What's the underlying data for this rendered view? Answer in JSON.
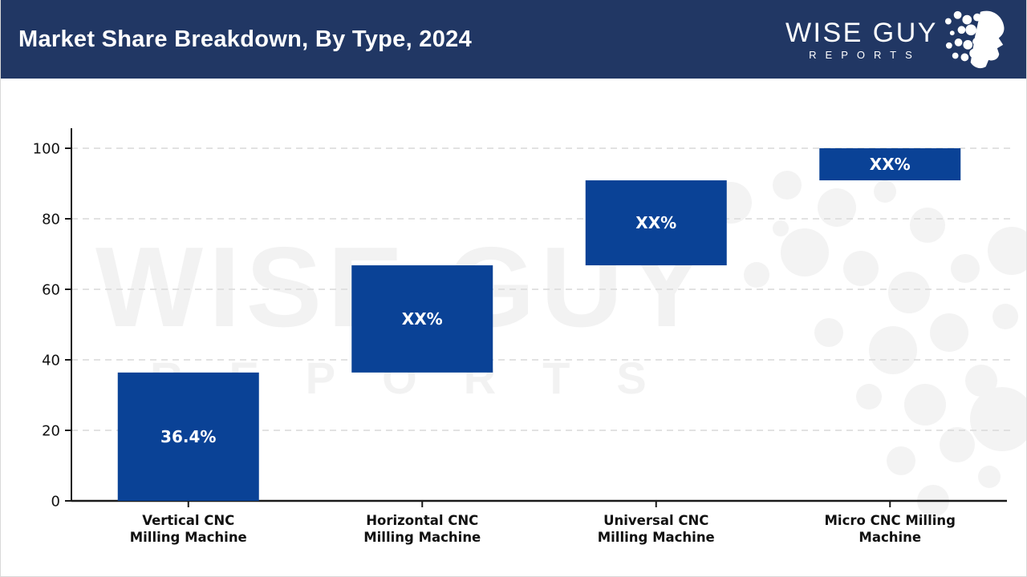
{
  "header": {
    "title": "Market Share Breakdown, By Type, 2024",
    "logo": {
      "name": "WISE GUY",
      "tagline": "REPORTS"
    }
  },
  "watermark": {
    "line1": "WISE GUY",
    "line2": "REPORTS"
  },
  "colors": {
    "header_bg": "#213764",
    "title_color": "#ffffff",
    "bar": "#0a4296",
    "bar_label": "#ffffff",
    "axis": "#1a1a1a",
    "tick_label": "#111111",
    "grid": "#d9d9d9",
    "watermark": "#f2f2f2"
  },
  "chart_data": {
    "type": "bar",
    "subtype": "waterfall",
    "title": "Market Share Breakdown, By Type, 2024",
    "categories": [
      [
        "Vertical CNC",
        "Milling Machine"
      ],
      [
        "Horizontal CNC",
        "Milling Machine"
      ],
      [
        "Universal CNC",
        "Milling Machine"
      ],
      [
        "Micro CNC Milling",
        "Machine"
      ]
    ],
    "segments": [
      {
        "category": "Vertical CNC Milling Machine",
        "start": 0,
        "end": 36.4,
        "label": "36.4%"
      },
      {
        "category": "Horizontal CNC Milling Machine",
        "start": 36.4,
        "end": 66.8,
        "label": "XX%"
      },
      {
        "category": "Universal CNC Milling Machine",
        "start": 66.8,
        "end": 90.9,
        "label": "XX%"
      },
      {
        "category": "Micro CNC Milling Machine",
        "start": 90.9,
        "end": 100,
        "label": "XX%"
      }
    ],
    "xlabel": "",
    "ylabel": "",
    "ylim": [
      0,
      105
    ],
    "yticks": [
      0,
      20,
      40,
      60,
      80,
      100
    ],
    "grid": "horizontal dashed",
    "legend": "none"
  }
}
